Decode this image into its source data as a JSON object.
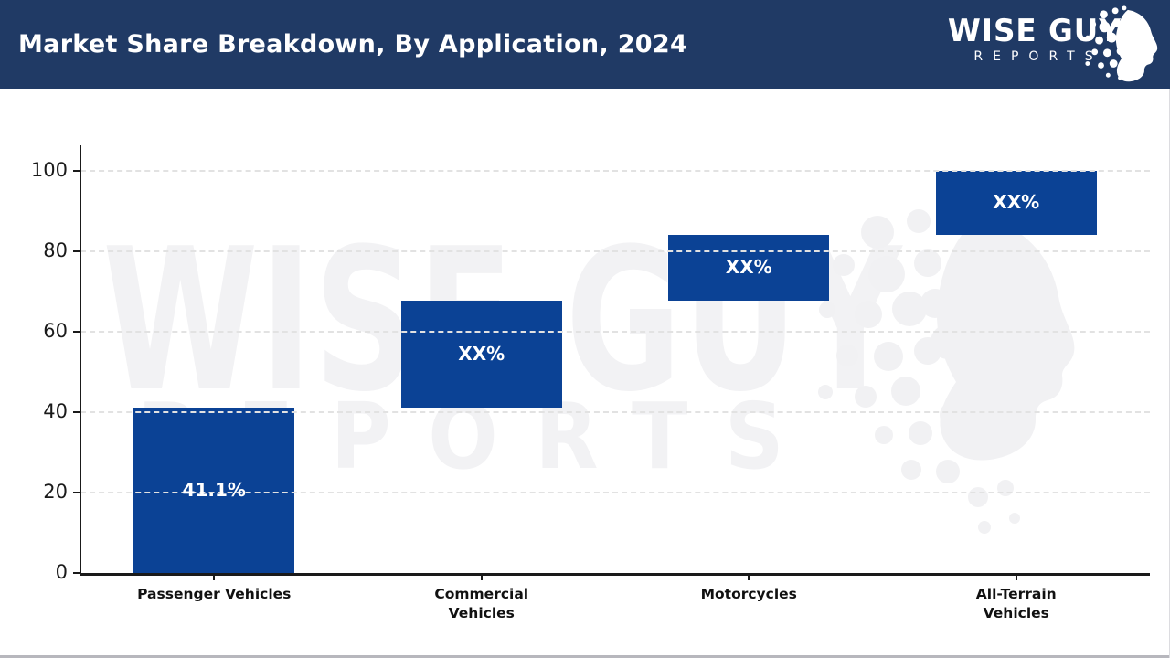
{
  "header": {
    "title": "Market Share Breakdown, By Application, 2024",
    "logo": {
      "line1": "WISE GUY",
      "line2": "REPORTS"
    }
  },
  "watermark": {
    "line1": "WISE GUY",
    "line2": "REPORTS"
  },
  "chart_data": {
    "type": "bar",
    "subtype": "waterfall",
    "title": "Market Share Breakdown, By Application, 2024",
    "categories": [
      "Passenger Vehicles",
      "Commercial\nVehicles",
      "Motorcycles",
      "All-Terrain\nVehicles"
    ],
    "segments": [
      {
        "category": "Passenger Vehicles",
        "start": 0,
        "end": 41.1,
        "label": "41.1%"
      },
      {
        "category": "Commercial Vehicles",
        "start": 41.1,
        "end": 67.7,
        "label": "XX%"
      },
      {
        "category": "Motorcycles",
        "start": 67.7,
        "end": 84.1,
        "label": "XX%"
      },
      {
        "category": "All-Terrain Vehicles",
        "start": 84.1,
        "end": 100,
        "label": "XX%"
      }
    ],
    "yticks": [
      0,
      20,
      40,
      60,
      80,
      100
    ],
    "ylim": [
      0,
      100
    ],
    "xlabel": "",
    "ylabel": "",
    "grid": "horizontal-dashed",
    "legend": "none",
    "bar_color": "#0b4295",
    "bar_label_color": "#ffffff"
  },
  "colors": {
    "header_bg": "#203a65",
    "bar": "#0b4295",
    "watermark": "#f2f2f4",
    "gridline": "#e2e2e2",
    "axis": "#1a1a1a"
  }
}
